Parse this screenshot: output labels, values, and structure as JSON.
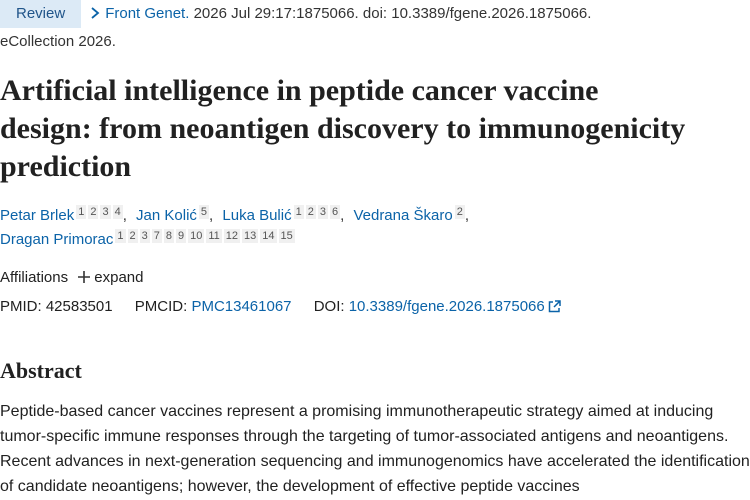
{
  "header": {
    "badge": "Review",
    "journal": "Front Genet.",
    "citation": "2026 Jul 29:17:1875066. doi: 10.3389/fgene.2026.1875066.",
    "ecollection": "eCollection 2026."
  },
  "title": "Artificial intelligence in peptide cancer vaccine design: from neoantigen discovery to immunogenicity prediction",
  "authors": [
    {
      "name": "Petar Brlek",
      "affiliations": [
        1,
        2,
        3,
        4
      ],
      "separator": ","
    },
    {
      "name": "Jan Kolić",
      "affiliations": [
        5
      ],
      "separator": ","
    },
    {
      "name": "Luka Bulić",
      "affiliations": [
        1,
        2,
        3,
        6
      ],
      "separator": ","
    },
    {
      "name": "Vedrana Škaro",
      "affiliations": [
        2
      ],
      "separator": ","
    },
    {
      "name": "Dragan Primorac",
      "affiliations": [
        1,
        2,
        3,
        7,
        8,
        9,
        10,
        11,
        12,
        13,
        14,
        15
      ]
    }
  ],
  "affiliations": {
    "label": "Affiliations",
    "toggle": "expand"
  },
  "identifiers": {
    "pmid_label": "PMID:",
    "pmid": 42583501,
    "pmcid_label": "PMCID:",
    "pmcid": "PMC13461067",
    "doi_label": "DOI:",
    "doi": "10.3389/fgene.2026.1875066"
  },
  "abstract": {
    "heading": "Abstract",
    "text": "Peptide-based cancer vaccines represent a promising immunotherapeutic strategy aimed at inducing tumor-specific immune responses through the targeting of tumor-associated antigens and neoantigens. Recent advances in next-generation sequencing and immunogenomics have accelerated the identification of candidate neoantigens; however, the development of effective peptide vaccines"
  }
}
